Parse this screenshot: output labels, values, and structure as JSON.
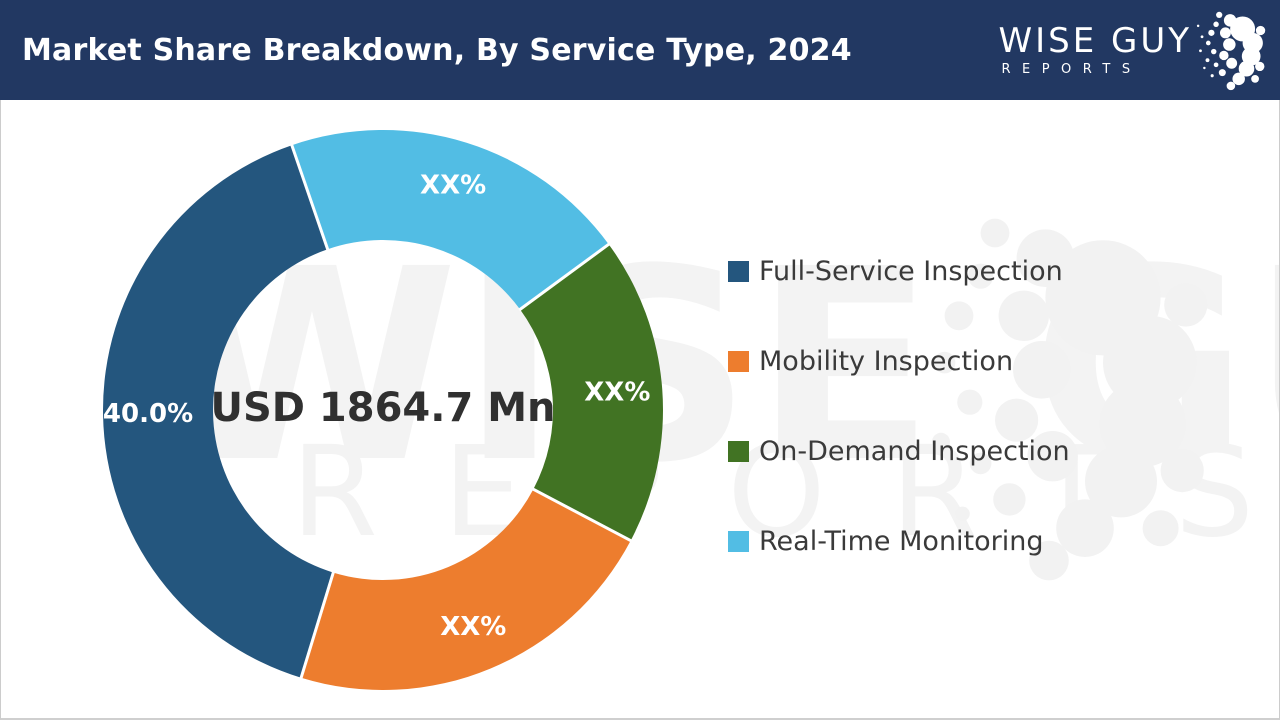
{
  "header": {
    "title": "Market Share Breakdown, By Service Type, 2024",
    "logo": {
      "line1": "WISE GUY",
      "line2": "REPORTS"
    }
  },
  "watermark": {
    "line1": "WISE GUY",
    "line2": "REPORTS"
  },
  "chart_data": {
    "type": "pie",
    "subtype": "donut",
    "title": "Market Share Breakdown, By Service Type, 2024",
    "center_label": "USD 1864.7 Mn",
    "start_angle_deg": 109,
    "direction": "counterclockwise",
    "legend_position": "right",
    "slices": [
      {
        "label": "Full-Service Inspection",
        "display_value": "40.0%",
        "value_pct_est": 40.0,
        "color": "#24567E"
      },
      {
        "label": "Mobility Inspection",
        "display_value": "XX%",
        "value_pct_est": 22.0,
        "color": "#ED7D2E"
      },
      {
        "label": "On-Demand Inspection",
        "display_value": "XX%",
        "value_pct_est": 17.8,
        "color": "#417323"
      },
      {
        "label": "Real-Time Monitoring",
        "display_value": "XX%",
        "value_pct_est": 20.2,
        "color": "#52BDE4"
      }
    ]
  }
}
